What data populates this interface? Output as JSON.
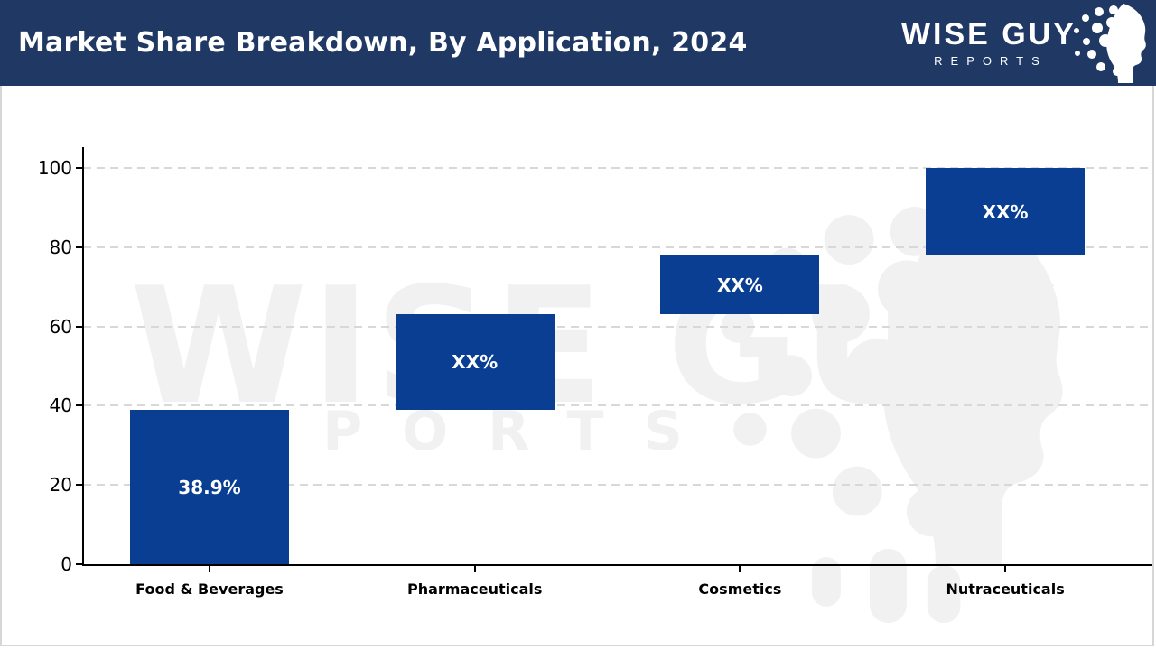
{
  "header": {
    "title": "Market Share Breakdown, By Application, 2024",
    "logo": {
      "line1": "WISE GUY",
      "line2": "REPORTS"
    }
  },
  "watermark": {
    "line1": "WISE GUY",
    "line2": "REPORTS"
  },
  "chart_data": {
    "type": "bar",
    "subtype": "floating-waterfall",
    "title": "Market Share Breakdown, By Application, 2024",
    "categories": [
      "Food & Beverages",
      "Pharmaceuticals",
      "Cosmetics",
      "Nutraceuticals"
    ],
    "segments": [
      {
        "category": "Food & Beverages",
        "start": 0,
        "end": 38.9,
        "label": "38.9%"
      },
      {
        "category": "Pharmaceuticals",
        "start": 38.9,
        "end": 63.1,
        "label": "XX%"
      },
      {
        "category": "Cosmetics",
        "start": 63.1,
        "end": 77.8,
        "label": "XX%"
      },
      {
        "category": "Nutraceuticals",
        "start": 77.8,
        "end": 100,
        "label": "XX%"
      }
    ],
    "ylim": [
      0,
      100
    ],
    "yticks": [
      0,
      20,
      40,
      60,
      80,
      100
    ],
    "xlabel": "",
    "ylabel": "",
    "grid": "horizontal-dashed",
    "legend": "none",
    "bar_color": "#0a3e92",
    "bar_label_color": "#ffffff"
  },
  "colors": {
    "header_bg": "#1f3864",
    "header_text": "#ffffff",
    "bar": "#0a3e92",
    "axis": "#000000",
    "gridline": "#d8d8d8",
    "watermark": "#f1f1f1",
    "content_border": "#d6d6d6"
  }
}
